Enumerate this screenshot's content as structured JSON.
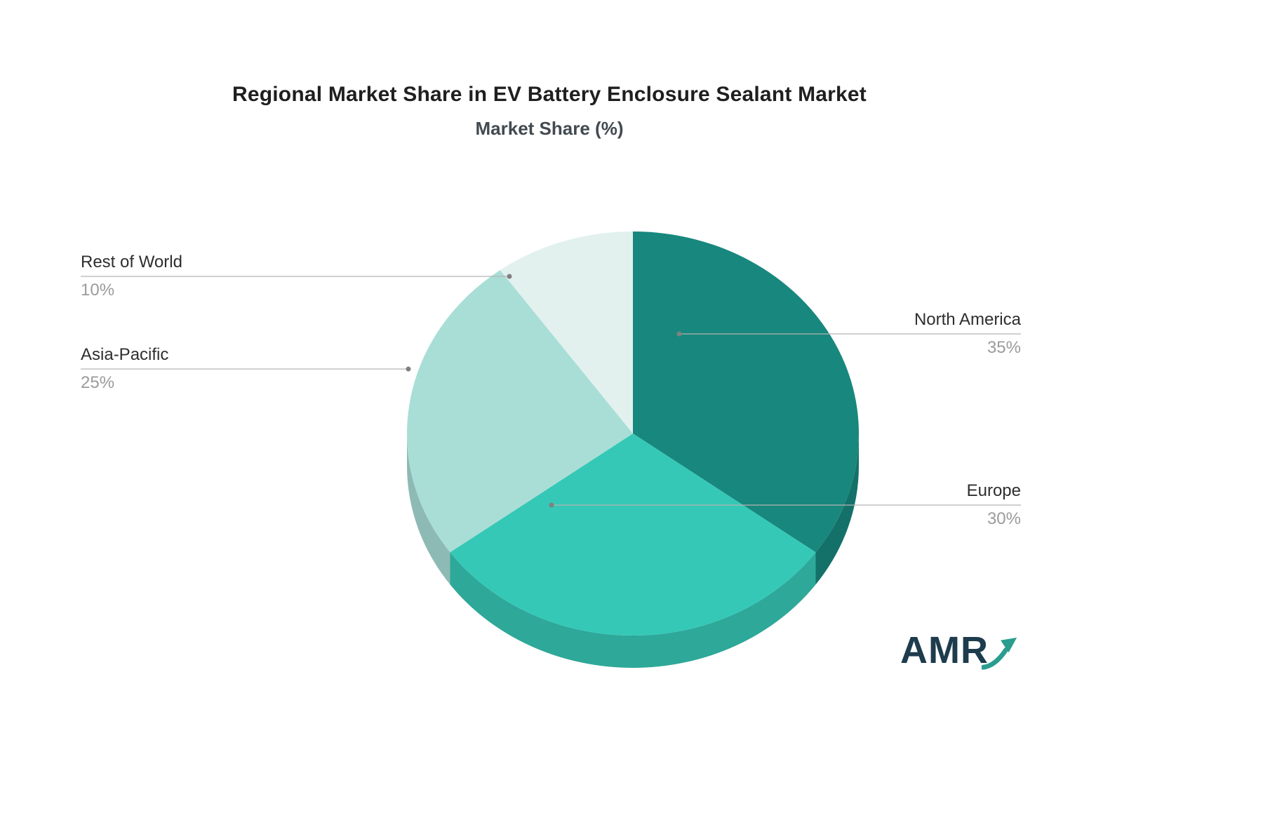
{
  "chart_data": {
    "type": "pie",
    "style": "3d-pie",
    "title": "Regional Market Share in EV Battery Enclosure Sealant Market",
    "subtitle": "Market Share (%)",
    "labels": [
      "North America",
      "Europe",
      "Asia-Pacific",
      "Rest of World"
    ],
    "values": [
      35,
      30,
      25,
      10
    ],
    "value_labels": [
      "35%",
      "30%",
      "25%",
      "10%"
    ],
    "colors": [
      "#18877d",
      "#35c8b6",
      "#a9ded7",
      "#e2f1ee"
    ],
    "unit": "%",
    "start_angle_deg": 0,
    "direction": "clockwise",
    "legend_position": "callout-labels"
  },
  "logo": {
    "text": "AMR",
    "text_color": "#1d3c4d",
    "arrow_color": "#2a9d8f"
  }
}
